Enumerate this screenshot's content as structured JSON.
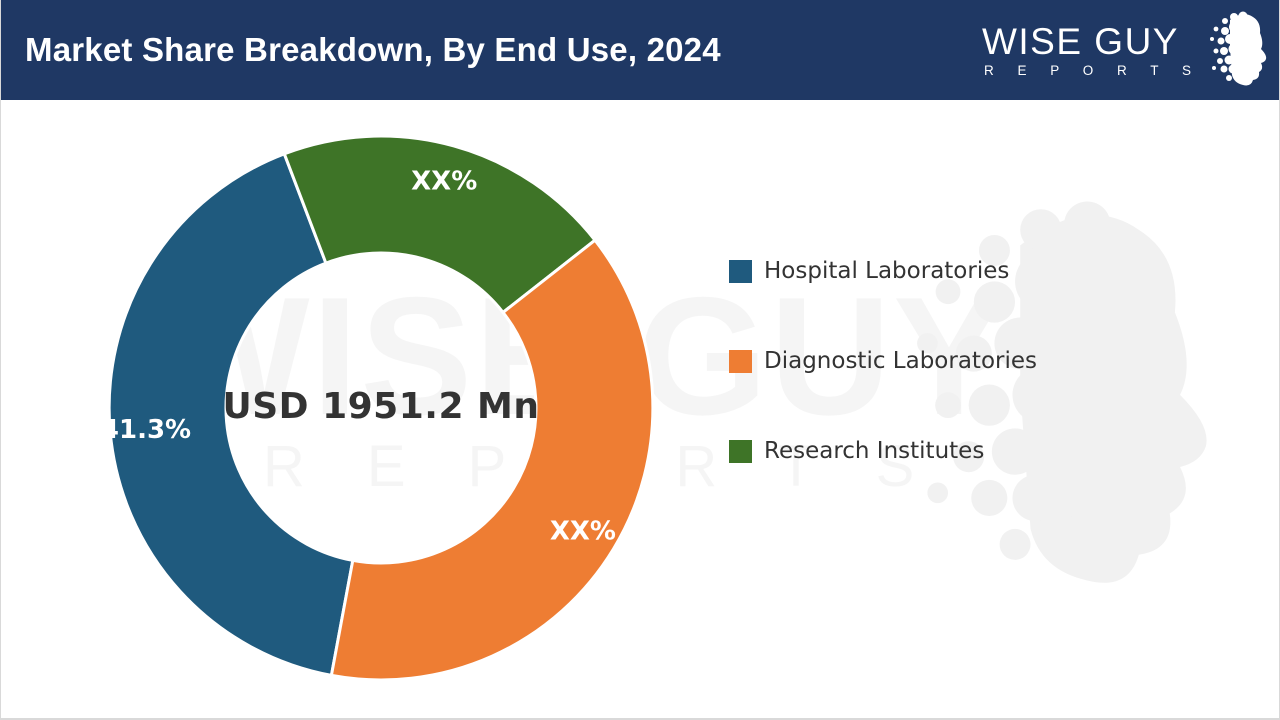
{
  "header": {
    "title": "Market Share Breakdown, By End Use, 2024",
    "logo": {
      "brand": "WISE GUY",
      "sub": "R E P O R T S"
    }
  },
  "watermark": {
    "brand": "WISE GUY",
    "sub": "REPORTS"
  },
  "chart_data": {
    "type": "pie",
    "subtype": "donut",
    "title": "Market Share Breakdown, By End Use, 2024",
    "center_label": "USD 1951.2 Mn",
    "slices": [
      {
        "label": "Hospital Laboratories",
        "display_value": "41.3%",
        "value_pct": 41.3,
        "color": "#1f5a7e"
      },
      {
        "label": "Diagnostic Laboratories",
        "display_value": "XX%",
        "value_pct": 38.5,
        "color": "#ee7d33"
      },
      {
        "label": "Research Institutes",
        "display_value": "XX%",
        "value_pct": 20.2,
        "color": "#3e7427"
      }
    ],
    "start_angle_deg": 190.5,
    "draw_order": [
      0,
      2,
      1
    ],
    "donut_hole_ratio": 0.57,
    "legend_position": "right",
    "slice_label_color": "#ffffff",
    "center_label_color": "#333333"
  }
}
